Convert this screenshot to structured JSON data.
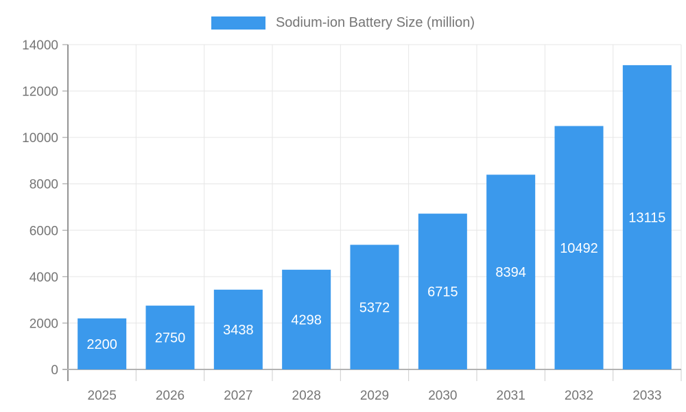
{
  "chart_data": {
    "type": "bar",
    "title": "",
    "legend": [
      "Sodium-ion Battery Size (million)"
    ],
    "legend_position": "top",
    "categories": [
      "2025",
      "2026",
      "2027",
      "2028",
      "2029",
      "2030",
      "2031",
      "2032",
      "2033"
    ],
    "values": [
      2200,
      2750,
      3438,
      4298,
      5372,
      6715,
      8394,
      10492,
      13115
    ],
    "bar_value_labels": [
      "2200",
      "2750",
      "3438",
      "4298",
      "5372",
      "6715",
      "8394",
      "10492",
      "13115"
    ],
    "xlabel": "",
    "ylabel": "",
    "ylim": [
      0,
      14000
    ],
    "ytick_step": 2000,
    "ytick_labels": [
      "0",
      "2000",
      "4000",
      "6000",
      "8000",
      "10000",
      "12000",
      "14000"
    ],
    "grid": true,
    "bar_color": "#3b99ec",
    "bar_label_color": "#ffffff",
    "axis_text_color": "#757575"
  }
}
